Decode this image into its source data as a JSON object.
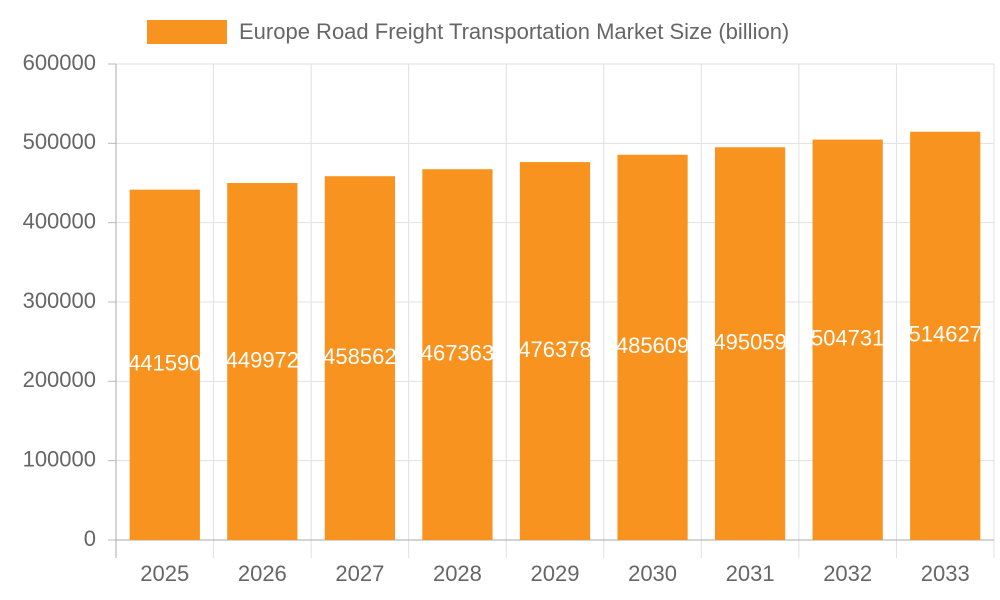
{
  "chart_data": {
    "type": "bar",
    "legend": "Europe Road Freight Transportation Market Size (billion)",
    "categories": [
      "2025",
      "2026",
      "2027",
      "2028",
      "2029",
      "2030",
      "2031",
      "2032",
      "2033"
    ],
    "values": [
      441590,
      449972,
      458562,
      467363,
      476378,
      485609,
      495059,
      504731,
      514627
    ],
    "color": "#f7931e",
    "ylim": [
      0,
      600000
    ],
    "yticks": [
      0,
      100000,
      200000,
      300000,
      400000,
      500000,
      600000
    ],
    "grid": true
  }
}
